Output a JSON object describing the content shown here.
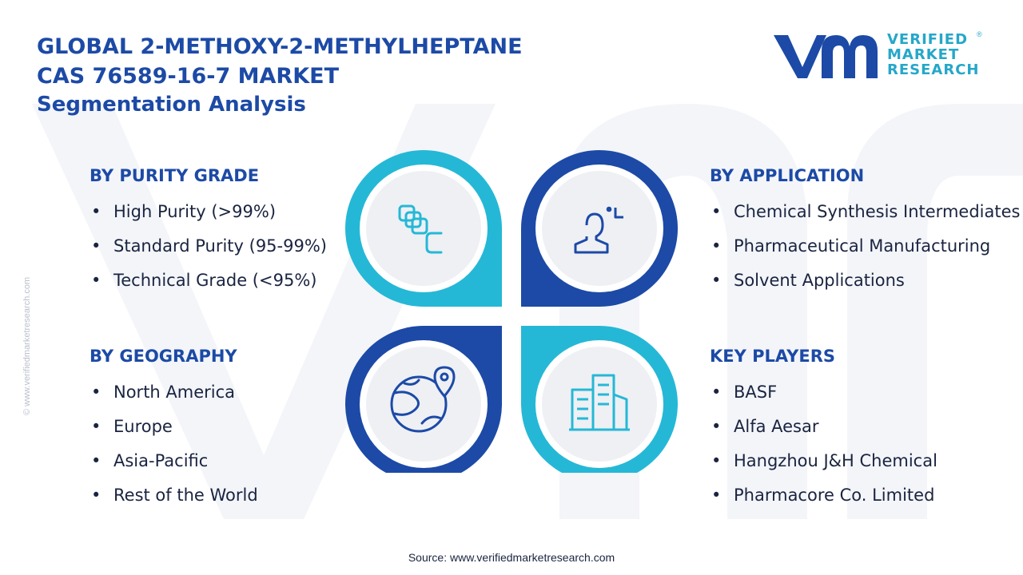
{
  "header": {
    "title_line1": "GLOBAL 2-METHOXY-2-METHYLHEPTANE",
    "title_line2": "CAS 76589-16-7 MARKET",
    "subtitle": "Segmentation Analysis"
  },
  "logo": {
    "line1": "VERIFIED",
    "line2": "MARKET",
    "line3": "RESEARCH",
    "registered": "®"
  },
  "side_url": "© www.verifiedmarketresearch.com",
  "segments": {
    "purity": {
      "title": "BY PURITY GRADE",
      "items": [
        "High Purity (>99%)",
        "Standard Purity (95-99%)",
        "Technical Grade (<95%)"
      ],
      "icon": "layers-icon"
    },
    "application": {
      "title": "BY APPLICATION",
      "items": [
        "Chemical Synthesis Intermediates",
        "Pharmaceutical Manufacturing",
        "Solvent Applications"
      ],
      "icon": "person-icon"
    },
    "geography": {
      "title": "BY GEOGRAPHY",
      "items": [
        "North America",
        "Europe",
        "Asia-Pacific",
        "Rest of the World"
      ],
      "icon": "globe-pin-icon"
    },
    "players": {
      "title": "KEY PLAYERS",
      "items": [
        "BASF",
        "Alfa Aesar",
        "Hangzhou J&H Chemical",
        "Pharmacore Co. Limited"
      ],
      "icon": "buildings-icon"
    }
  },
  "colors": {
    "navy": "#1c4aa6",
    "cyan": "#25b8d6",
    "circle_bg": "#eef0f4",
    "text": "#1a2440"
  },
  "source": "Source: www.verifiedmarketresearch.com"
}
